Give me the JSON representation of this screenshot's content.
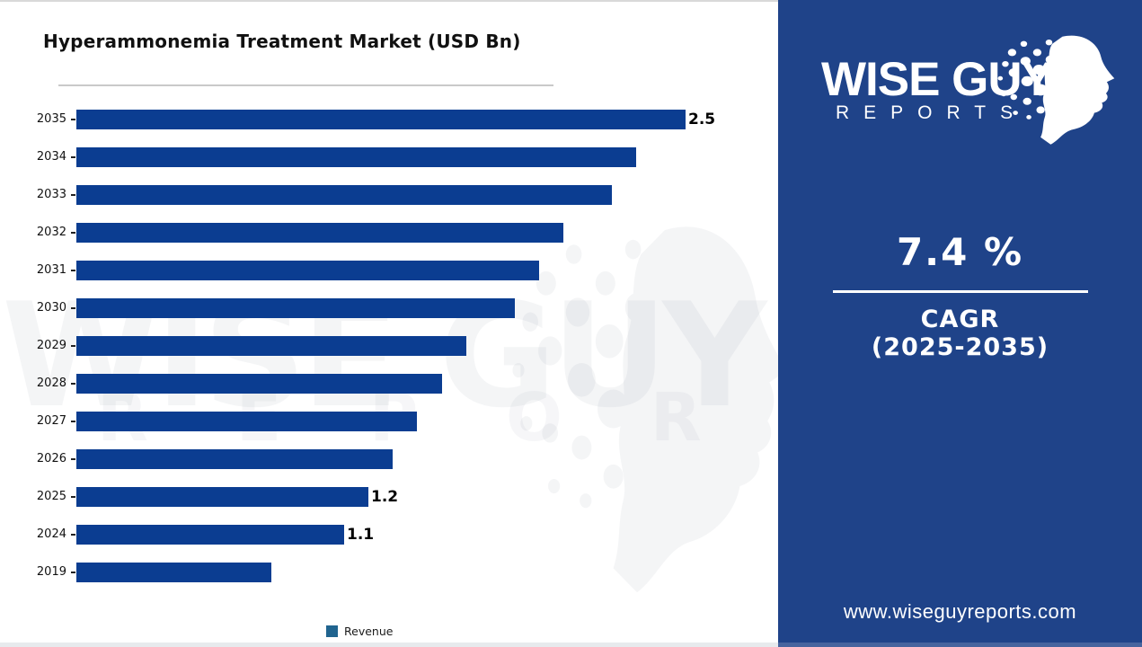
{
  "chart_data": {
    "type": "bar",
    "orientation": "horizontal",
    "title": "Hyperammonemia Treatment Market (USD Bn)",
    "categories": [
      "2035",
      "2034",
      "2033",
      "2032",
      "2031",
      "2030",
      "2029",
      "2028",
      "2027",
      "2026",
      "2025",
      "2024",
      "2019"
    ],
    "values": [
      2.5,
      2.3,
      2.2,
      2.0,
      1.9,
      1.8,
      1.6,
      1.5,
      1.4,
      1.3,
      1.2,
      1.1,
      0.8
    ],
    "value_labels": [
      "2.5",
      "",
      "",
      "",
      "",
      "",
      "",
      "",
      "",
      "",
      "1.2",
      "1.1",
      ""
    ],
    "xlabel": "",
    "ylabel": "",
    "xlim": [
      0,
      2.6
    ],
    "grid": false,
    "legend_position": "bottom-center",
    "legend": [
      {
        "label": "Revenue",
        "color": "#20648f"
      }
    ],
    "bar_color": "#0b3d91"
  },
  "watermark": {
    "line1": "WISE GUY",
    "line2": "R E P O R T S"
  },
  "sidebar": {
    "background": "#1f4389",
    "logo_line1": "WISE GUY",
    "logo_line2": "REPORTS",
    "cagr_value": "7.4 %",
    "cagr_label": "CAGR",
    "cagr_range": "(2025-2035)",
    "website": "www.wiseguyreports.com"
  }
}
